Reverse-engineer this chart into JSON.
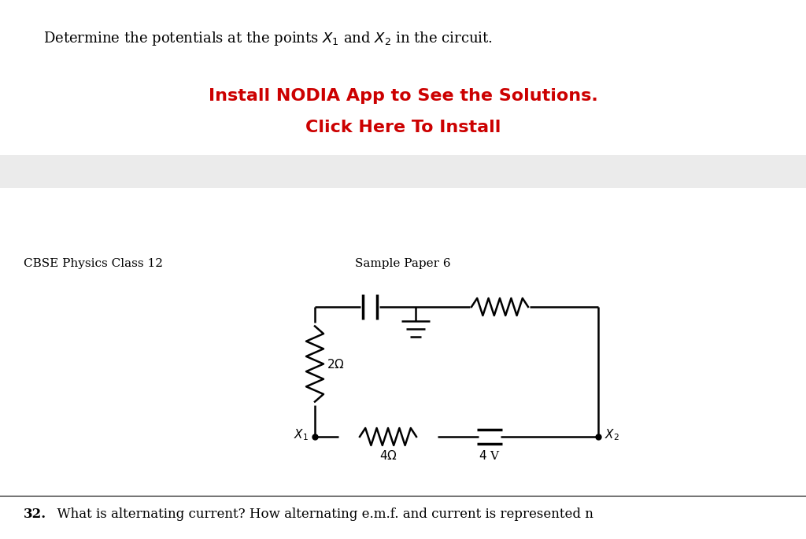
{
  "title_text": "Determine the potentials at the points $X_1$ and $X_2$ in the circuit.",
  "ad_line1": "Install NODIA App to See the Solutions.",
  "ad_line2": "Click Here To Install",
  "ad_color": "#cc0000",
  "cbse_label": "CBSE Physics Class 12",
  "sample_label": "Sample Paper 6",
  "footer_num": "32.",
  "footer_text": "  What is alternating current? How alternating e.m.f. and current is represented n",
  "bg_color": "#ffffff",
  "gray_band_color": "#ebebeb",
  "title_fontsize": 13,
  "ad_fontsize": 16,
  "label_fontsize": 11,
  "footer_fontsize": 12
}
